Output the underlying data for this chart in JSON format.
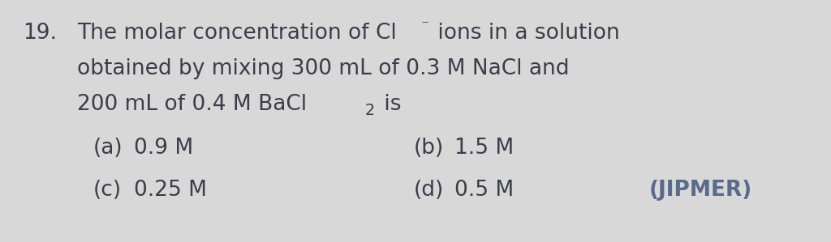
{
  "background_color": "#d8d8d8",
  "text_color": "#3c3c4a",
  "jipmer_color": "#5a6a8a",
  "q_number": "19.",
  "line1_pre": "The molar concentration of Cl",
  "line1_sup": "⁻",
  "line1_post": " ions in a solution",
  "line2": "obtained by mixing 300 mL of 0.3 M NaCl and",
  "line3_pre": "200 mL of 0.4 M BaCl",
  "line3_sub": "2",
  "line3_post": " is",
  "opt_a_label": "(a)",
  "opt_a_text": "0.9 M",
  "opt_b_label": "(b)",
  "opt_b_text": "1.5 M",
  "opt_c_label": "(c)",
  "opt_c_text": "0.25 M",
  "opt_d_label": "(d)",
  "opt_d_text": "0.5 M",
  "jipmer": "(JIPMER)",
  "main_fs": 19,
  "opt_fs": 19,
  "jipmer_fs": 19,
  "num_fs": 19
}
